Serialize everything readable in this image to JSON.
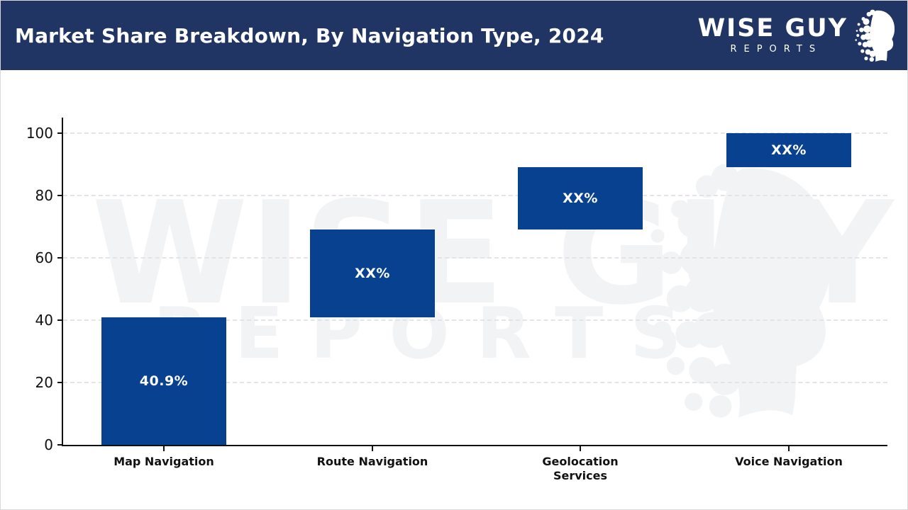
{
  "header": {
    "title": "Market Share Breakdown, By Navigation Type, 2024",
    "bg_color": "#213564",
    "logo": {
      "line1": "WISE GUY",
      "line2": "REPORTS"
    }
  },
  "watermark": {
    "line1": "WISE GUY",
    "line2": "REPORTS"
  },
  "chart_data": {
    "type": "bar",
    "subtype": "waterfall",
    "title": "Market Share Breakdown, By Navigation Type, 2024",
    "categories": [
      "Map Navigation",
      "Route Navigation",
      "Geolocation Services",
      "Voice Navigation"
    ],
    "bars": [
      {
        "category": "Map Navigation",
        "tick_label": "Map Navigation",
        "start": 0,
        "end": 40.9,
        "label": "40.9%"
      },
      {
        "category": "Route Navigation",
        "tick_label": "Route Navigation",
        "start": 41,
        "end": 69,
        "label": "XX%"
      },
      {
        "category": "Geolocation Services",
        "tick_label": "Geolocation\nServices",
        "start": 69,
        "end": 89,
        "label": "XX%"
      },
      {
        "category": "Voice Navigation",
        "tick_label": "Voice Navigation",
        "start": 89,
        "end": 100,
        "label": "XX%"
      }
    ],
    "xlabel": "",
    "ylabel": "",
    "ylim": [
      0,
      105
    ],
    "yticks": [
      0,
      20,
      40,
      60,
      80,
      100
    ],
    "grid": "horizontal-dashed",
    "gridline_color": "#e4e4e6",
    "bar_color": "#07418f",
    "bar_label_color": "#ffffff",
    "axis_color": "#111111",
    "legend": "none"
  }
}
